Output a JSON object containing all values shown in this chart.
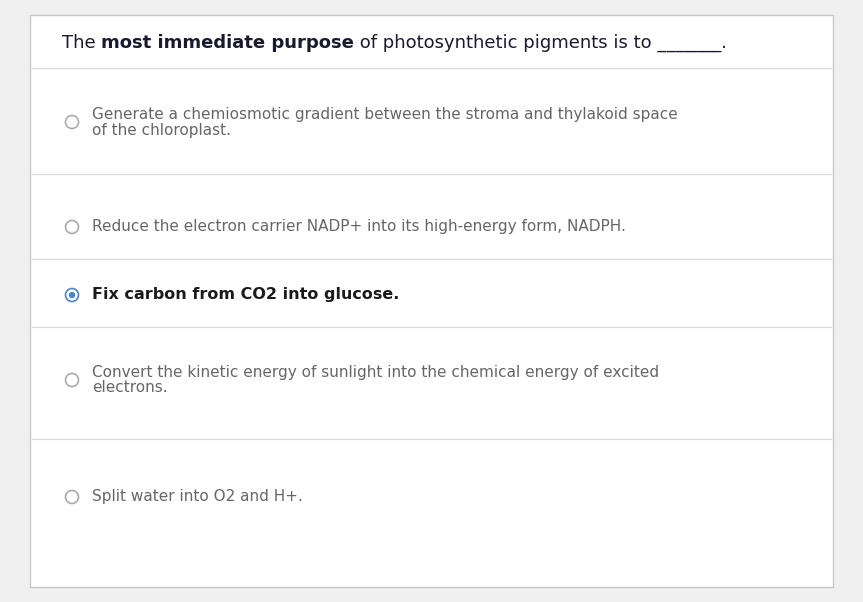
{
  "background_color": "#f0f0f0",
  "card_color": "#ffffff",
  "card_border_color": "#c8c8c8",
  "title_color": "#1a1a2e",
  "divider_color": "#d8d8d8",
  "options": [
    {
      "text_line1": "Generate a chemiosmotic gradient between the stroma and thylakoid space",
      "text_line2": "of the chloroplast.",
      "selected": false,
      "bold": false,
      "radio_fill": "#aaaaaa",
      "text_color": "#666666"
    },
    {
      "text_line1": "Reduce the electron carrier NADP+ into its high-energy form, NADPH.",
      "text_line2": "",
      "selected": false,
      "bold": false,
      "radio_fill": "#aaaaaa",
      "text_color": "#666666"
    },
    {
      "text_line1": "Fix carbon from CO2 into glucose.",
      "text_line2": "",
      "selected": true,
      "bold": true,
      "radio_fill": "#4a86c8",
      "text_color": "#1a1a1a"
    },
    {
      "text_line1": "Convert the kinetic energy of sunlight into the chemical energy of excited",
      "text_line2": "electrons.",
      "selected": false,
      "bold": false,
      "radio_fill": "#aaaaaa",
      "text_color": "#666666"
    },
    {
      "text_line1": "Split water into O2 and H+.",
      "text_line2": "",
      "selected": false,
      "bold": false,
      "radio_fill": "#aaaaaa",
      "text_color": "#666666"
    }
  ],
  "title_fontsize": 13.0,
  "option_fontsize": 11.0,
  "selected_fontsize": 11.5
}
